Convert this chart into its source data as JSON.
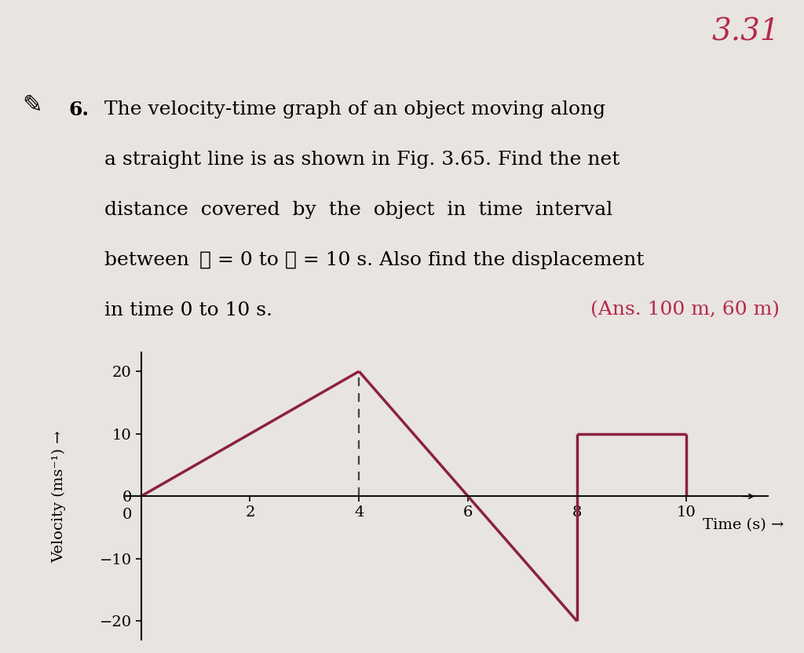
{
  "title_text": "3.31",
  "title_color": "#b5294e",
  "ans_text": "(Ans. 100 m, 60 m)",
  "ans_color": "#b5294e",
  "line_color": "#b5294e",
  "line_segments": [
    {
      "x": [
        0,
        4
      ],
      "y": [
        0,
        20
      ]
    },
    {
      "x": [
        4,
        8
      ],
      "y": [
        20,
        -20
      ]
    },
    {
      "x": [
        8,
        8
      ],
      "y": [
        -20,
        10
      ]
    },
    {
      "x": [
        8,
        10
      ],
      "y": [
        10,
        10
      ]
    },
    {
      "x": [
        10,
        10
      ],
      "y": [
        10,
        0
      ]
    }
  ],
  "dashed_line": {
    "x": [
      4,
      4
    ],
    "y": [
      0,
      20
    ]
  },
  "xlabel": "Time (s) →",
  "ylabel_parts": [
    "Velocity (ms",
    "⁻¹",
    ") →"
  ],
  "xlim": [
    -0.3,
    11.5
  ],
  "ylim": [
    -23,
    23
  ],
  "xticks": [
    2,
    4,
    6,
    8,
    10
  ],
  "yticks": [
    -20,
    -10,
    0,
    10,
    20
  ],
  "bg_color": "#e8e4e0",
  "line_width": 2.5,
  "graph_line_color": "#8b2045",
  "axis_color": "#111111",
  "tick_label_fontsize": 14,
  "axis_label_fontsize": 14,
  "text_fontsize": 18,
  "title_fontsize": 28
}
